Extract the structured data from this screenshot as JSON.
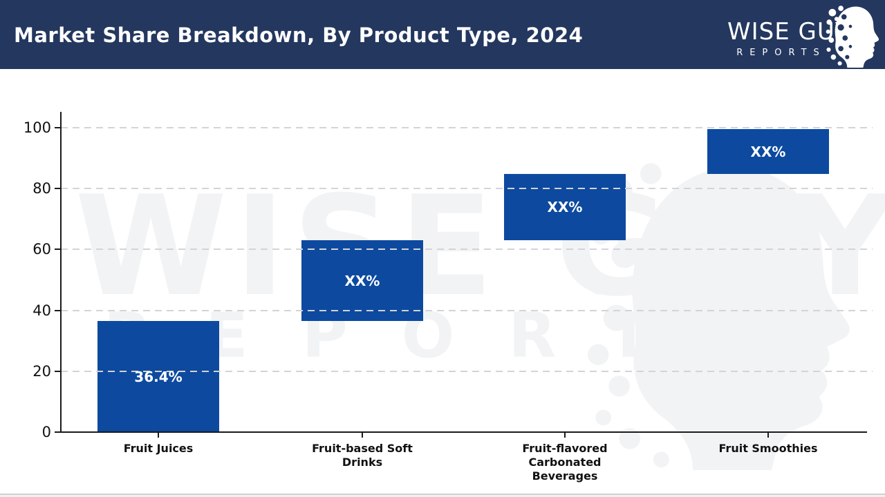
{
  "header": {
    "title": "Market Share Breakdown, By Product Type, 2024",
    "bg_color": "#24375f"
  },
  "logo": {
    "line1": "WISE GUY",
    "line2": "REPORTS"
  },
  "watermark": {
    "line1": "WISE GUY",
    "line2": "REPORTS"
  },
  "chart_data": {
    "type": "bar",
    "subtype": "floating-segment-waterfall",
    "title": "Market Share Breakdown, By Product Type, 2024",
    "categories": [
      "Fruit Juices",
      "Fruit-based Soft\nDrinks",
      "Fruit-flavored\nCarbonated\nBeverages",
      "Fruit Smoothies"
    ],
    "segments": [
      {
        "category": "Fruit Juices",
        "start": 0,
        "end": 36.4,
        "label": "36.4%"
      },
      {
        "category": "Fruit-based Soft Drinks",
        "start": 36.4,
        "end": 63.0,
        "label": "XX%"
      },
      {
        "category": "Fruit-flavored Carbonated Beverages",
        "start": 63.0,
        "end": 84.7,
        "label": "XX%"
      },
      {
        "category": "Fruit Smoothies",
        "start": 84.7,
        "end": 99.6,
        "label": "XX%"
      }
    ],
    "ylim": [
      0,
      100
    ],
    "yticks": [
      0,
      20,
      40,
      60,
      80,
      100
    ],
    "xlabel": "",
    "ylabel": "",
    "grid": "horizontal-dashed",
    "legend": "none",
    "bar_color": "#0d4a9f",
    "bar_label_color": "#ffffff",
    "gridline_color": "#d4d4d4"
  }
}
